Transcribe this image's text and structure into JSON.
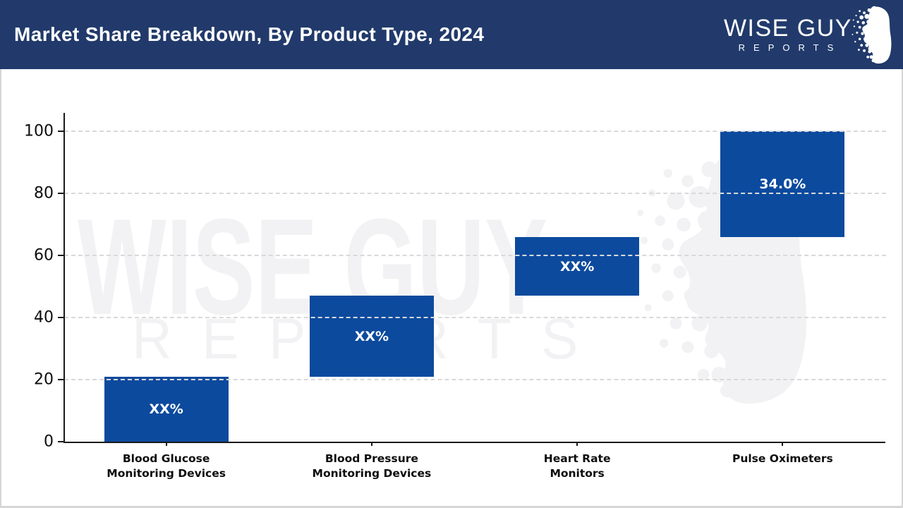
{
  "header": {
    "title": "Market Share Breakdown, By Product Type, 2024",
    "logo": {
      "line1": "WISE GUY",
      "line2": "REPORTS"
    }
  },
  "watermark": {
    "line1": "WISE GUY",
    "line2": "REPORTS"
  },
  "colors": {
    "header_bg": "#213a6b",
    "bar": "#0c4a9e",
    "grid": "#d9d9d9",
    "axis": "#1a1a1a",
    "watermark": "#f2f2f4",
    "bar_label_text": "#ffffff",
    "tick_text": "#0d0d0d"
  },
  "chart_data": {
    "type": "bar",
    "subtype": "floating-range-segments",
    "title": "Market Share Breakdown, By Product Type, 2024",
    "categories": [
      "Blood Glucose\nMonitoring Devices",
      "Blood Pressure\nMonitoring Devices",
      "Heart Rate\nMonitors",
      "Pulse Oximeters"
    ],
    "bars": [
      {
        "category": "Blood Glucose Monitoring Devices",
        "start": 0,
        "end": 21,
        "label": "XX%"
      },
      {
        "category": "Blood Pressure Monitoring Devices",
        "start": 21,
        "end": 47,
        "label": "XX%"
      },
      {
        "category": "Heart Rate Monitors",
        "start": 47,
        "end": 66,
        "label": "XX%"
      },
      {
        "category": "Pulse Oximeters",
        "start": 66,
        "end": 100,
        "label": "34.0%"
      }
    ],
    "yticks": [
      0,
      20,
      40,
      60,
      80,
      100
    ],
    "ylim": [
      0,
      106
    ],
    "xlabel": "",
    "ylabel": "",
    "grid": "horizontal-dashed",
    "legend": "none",
    "bar_color": "#0c4a9e"
  }
}
